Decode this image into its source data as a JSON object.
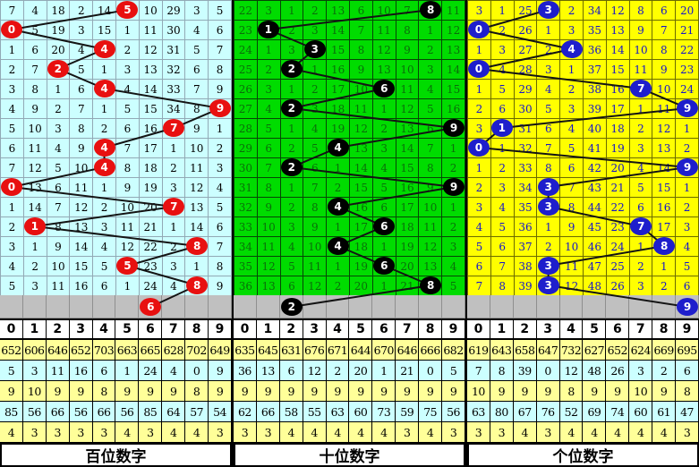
{
  "header_digits": [
    "0",
    "1",
    "2",
    "3",
    "4",
    "5",
    "6",
    "7",
    "8",
    "9"
  ],
  "gray_row_color": "#c0c0c0",
  "stats_row_colors": [
    "#ffff99",
    "#ccffff",
    "#ffff99",
    "#ccffff",
    "#ffff99"
  ],
  "line_color": "#141414",
  "chart_data": {
    "type": "table",
    "panels": [
      {
        "footer": "百位数字",
        "colors": {
          "bg": "#ccffff",
          "grid": "#92a9b5",
          "text": "#000000",
          "circle": "#e81010",
          "circle_text": "#ffffff"
        },
        "rows": [
          {
            "values": [
              7,
              4,
              18,
              2,
              14,
              5,
              10,
              29,
              3,
              5
            ],
            "hit": 5
          },
          {
            "values": [
              0,
              5,
              19,
              3,
              15,
              1,
              11,
              30,
              4,
              6
            ],
            "hit": 0
          },
          {
            "values": [
              1,
              6,
              20,
              4,
              4,
              2,
              12,
              31,
              5,
              7
            ],
            "hit": 4
          },
          {
            "values": [
              2,
              7,
              2,
              5,
              1,
              3,
              13,
              32,
              6,
              8
            ],
            "hit": 2
          },
          {
            "values": [
              3,
              8,
              1,
              6,
              4,
              4,
              14,
              33,
              7,
              9
            ],
            "hit": 4
          },
          {
            "values": [
              4,
              9,
              2,
              7,
              1,
              5,
              15,
              34,
              8,
              9
            ],
            "hit": 9
          },
          {
            "values": [
              5,
              10,
              3,
              8,
              2,
              6,
              16,
              7,
              9,
              1
            ],
            "hit": 7
          },
          {
            "values": [
              6,
              11,
              4,
              9,
              4,
              7,
              17,
              1,
              10,
              2
            ],
            "hit": 4
          },
          {
            "values": [
              7,
              12,
              5,
              10,
              4,
              8,
              18,
              2,
              11,
              3
            ],
            "hit": 4
          },
          {
            "values": [
              0,
              13,
              6,
              11,
              1,
              9,
              19,
              3,
              12,
              4
            ],
            "hit": 0
          },
          {
            "values": [
              1,
              14,
              7,
              12,
              2,
              10,
              20,
              7,
              13,
              5
            ],
            "hit": 7
          },
          {
            "values": [
              2,
              1,
              8,
              13,
              3,
              11,
              21,
              1,
              14,
              6
            ],
            "hit": 1
          },
          {
            "values": [
              3,
              1,
              9,
              14,
              4,
              12,
              22,
              2,
              8,
              7
            ],
            "hit": 8
          },
          {
            "values": [
              4,
              2,
              10,
              15,
              5,
              5,
              23,
              3,
              1,
              8
            ],
            "hit": 5
          },
          {
            "values": [
              5,
              3,
              11,
              16,
              6,
              1,
              24,
              4,
              8,
              9
            ],
            "hit": 8
          }
        ],
        "next": {
          "col": 6,
          "label": "6"
        },
        "stats": [
          [
            652,
            606,
            646,
            652,
            703,
            663,
            665,
            628,
            702,
            649
          ],
          [
            5,
            3,
            11,
            16,
            6,
            1,
            24,
            4,
            0,
            9
          ],
          [
            9,
            10,
            9,
            9,
            8,
            9,
            9,
            9,
            8,
            9
          ],
          [
            85,
            56,
            66,
            56,
            66,
            56,
            85,
            64,
            57,
            54
          ],
          [
            4,
            3,
            3,
            3,
            3,
            4,
            3,
            4,
            4,
            3
          ]
        ]
      },
      {
        "footer": "十位数字",
        "colors": {
          "bg": "#00dc00",
          "grid": "#064606",
          "text": "#0a6e0a",
          "circle": "#000000",
          "circle_text": "#ffffff"
        },
        "rows": [
          {
            "values": [
              22,
              3,
              1,
              2,
              13,
              6,
              10,
              7,
              8,
              11
            ],
            "hit": 8
          },
          {
            "values": [
              23,
              1,
              2,
              3,
              14,
              7,
              11,
              8,
              1,
              12
            ],
            "hit": 1
          },
          {
            "values": [
              24,
              1,
              3,
              3,
              15,
              8,
              12,
              9,
              2,
              13
            ],
            "hit": 3
          },
          {
            "values": [
              25,
              2,
              2,
              1,
              16,
              9,
              13,
              10,
              3,
              14
            ],
            "hit": 2
          },
          {
            "values": [
              26,
              3,
              1,
              2,
              17,
              10,
              6,
              11,
              4,
              15
            ],
            "hit": 6
          },
          {
            "values": [
              27,
              4,
              2,
              3,
              18,
              11,
              1,
              12,
              5,
              16
            ],
            "hit": 2
          },
          {
            "values": [
              28,
              5,
              1,
              4,
              19,
              12,
              2,
              13,
              6,
              9
            ],
            "hit": 9
          },
          {
            "values": [
              29,
              6,
              2,
              5,
              4,
              13,
              3,
              14,
              7,
              1
            ],
            "hit": 4
          },
          {
            "values": [
              30,
              7,
              2,
              6,
              1,
              14,
              4,
              15,
              8,
              2
            ],
            "hit": 2
          },
          {
            "values": [
              31,
              8,
              1,
              7,
              2,
              15,
              5,
              16,
              9,
              9
            ],
            "hit": 9
          },
          {
            "values": [
              32,
              9,
              2,
              8,
              4,
              16,
              6,
              17,
              10,
              1
            ],
            "hit": 4
          },
          {
            "values": [
              33,
              10,
              3,
              9,
              1,
              17,
              6,
              18,
              11,
              2
            ],
            "hit": 6
          },
          {
            "values": [
              34,
              11,
              4,
              10,
              4,
              18,
              1,
              19,
              12,
              3
            ],
            "hit": 4
          },
          {
            "values": [
              35,
              12,
              5,
              11,
              1,
              19,
              6,
              20,
              13,
              4
            ],
            "hit": 6
          },
          {
            "values": [
              36,
              13,
              6,
              12,
              2,
              20,
              1,
              21,
              8,
              5
            ],
            "hit": 8
          }
        ],
        "next": {
          "col": 2,
          "label": "2"
        },
        "stats": [
          [
            635,
            645,
            631,
            676,
            671,
            644,
            670,
            646,
            666,
            682
          ],
          [
            36,
            13,
            6,
            12,
            2,
            20,
            1,
            21,
            0,
            5
          ],
          [
            9,
            9,
            9,
            9,
            9,
            9,
            9,
            9,
            9,
            9
          ],
          [
            62,
            66,
            58,
            55,
            63,
            60,
            73,
            59,
            75,
            56
          ],
          [
            3,
            3,
            4,
            4,
            4,
            4,
            4,
            3,
            4,
            3
          ]
        ]
      },
      {
        "footer": "个位数字",
        "colors": {
          "bg": "#ffff00",
          "grid": "#6b6b00",
          "text": "#1414cc",
          "circle": "#1e1ecc",
          "circle_text": "#ffffff"
        },
        "rows": [
          {
            "values": [
              3,
              1,
              25,
              3,
              2,
              34,
              12,
              8,
              6,
              20
            ],
            "hit": 3
          },
          {
            "values": [
              0,
              2,
              26,
              1,
              3,
              35,
              13,
              9,
              7,
              21
            ],
            "hit": 0
          },
          {
            "values": [
              1,
              3,
              27,
              2,
              4,
              36,
              14,
              10,
              8,
              22
            ],
            "hit": 4
          },
          {
            "values": [
              0,
              4,
              28,
              3,
              1,
              37,
              15,
              11,
              9,
              23
            ],
            "hit": 0
          },
          {
            "values": [
              1,
              5,
              29,
              4,
              2,
              38,
              16,
              7,
              10,
              24
            ],
            "hit": 7
          },
          {
            "values": [
              2,
              6,
              30,
              5,
              3,
              39,
              17,
              1,
              11,
              9
            ],
            "hit": 9
          },
          {
            "values": [
              3,
              1,
              31,
              6,
              4,
              40,
              18,
              2,
              12,
              1
            ],
            "hit": 1
          },
          {
            "values": [
              0,
              1,
              32,
              7,
              5,
              41,
              19,
              3,
              13,
              2
            ],
            "hit": 0
          },
          {
            "values": [
              1,
              2,
              33,
              8,
              6,
              42,
              20,
              4,
              14,
              9
            ],
            "hit": 9
          },
          {
            "values": [
              2,
              3,
              34,
              3,
              7,
              43,
              21,
              5,
              15,
              1
            ],
            "hit": 3
          },
          {
            "values": [
              3,
              4,
              35,
              3,
              8,
              44,
              22,
              6,
              16,
              2
            ],
            "hit": 3
          },
          {
            "values": [
              4,
              5,
              36,
              1,
              9,
              45,
              23,
              7,
              17,
              3
            ],
            "hit": 7
          },
          {
            "values": [
              5,
              6,
              37,
              2,
              10,
              46,
              24,
              1,
              8,
              4
            ],
            "hit": 8
          },
          {
            "values": [
              6,
              7,
              38,
              3,
              11,
              47,
              25,
              2,
              1,
              5
            ],
            "hit": 3
          },
          {
            "values": [
              7,
              8,
              39,
              3,
              12,
              48,
              26,
              3,
              2,
              6
            ],
            "hit": 3
          }
        ],
        "next": {
          "col": 9,
          "label": "9"
        },
        "stats": [
          [
            619,
            643,
            658,
            647,
            732,
            627,
            652,
            624,
            669,
            695
          ],
          [
            7,
            8,
            39,
            0,
            12,
            48,
            26,
            3,
            2,
            6
          ],
          [
            10,
            9,
            9,
            9,
            8,
            9,
            9,
            10,
            9,
            8
          ],
          [
            63,
            80,
            67,
            76,
            52,
            69,
            74,
            60,
            61,
            47
          ],
          [
            3,
            3,
            4,
            3,
            4,
            4,
            4,
            4,
            4,
            3
          ]
        ]
      }
    ]
  }
}
